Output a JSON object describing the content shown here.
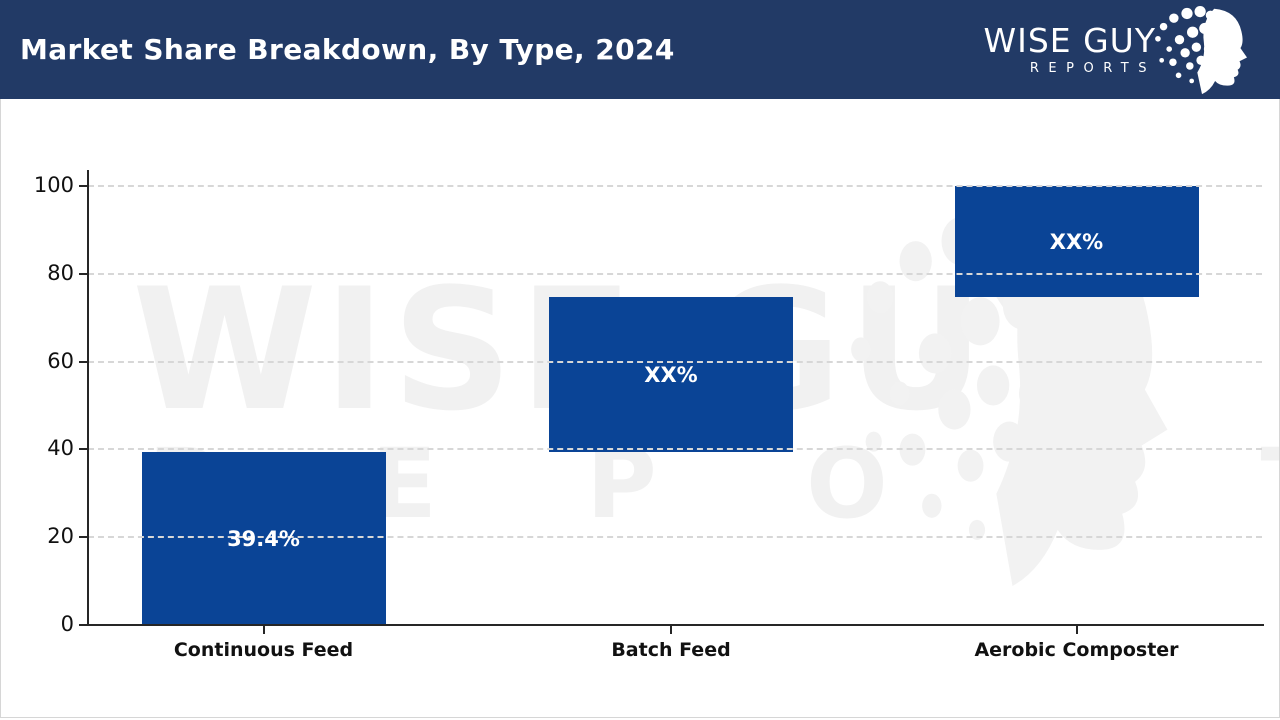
{
  "header": {
    "title": "Market Share Breakdown, By Type, 2024",
    "logo": {
      "wordmark": "WISE GUY",
      "subtext": "REPORTS"
    }
  },
  "watermark": {
    "wordmark": "WISE GUY",
    "subtext": "R E P O R T S"
  },
  "chart_data": {
    "type": "bar",
    "subtype": "waterfall",
    "title": "Market Share Breakdown, By Type, 2024",
    "categories": [
      "Continuous Feed",
      "Batch Feed",
      "Aerobic Composter"
    ],
    "segments": [
      {
        "category": "Continuous Feed",
        "start": 0,
        "end": 39.4,
        "label": "39.4%"
      },
      {
        "category": "Batch Feed",
        "start": 39.4,
        "end": 74.7,
        "label": "XX%"
      },
      {
        "category": "Aerobic Composter",
        "start": 74.7,
        "end": 100,
        "label": "XX%"
      }
    ],
    "yticks": [
      0,
      20,
      40,
      60,
      80,
      100
    ],
    "ylim": [
      0,
      103.5
    ],
    "xlabel": "",
    "ylabel": "",
    "legend": "none",
    "grid": "horizontal dashed, drawn above bars",
    "bar_color": "#0A4496",
    "value_label_color": "#ffffff",
    "header_color": "#223A66",
    "axis_color": "#262626",
    "gridline_color": "#d7d7d7"
  }
}
